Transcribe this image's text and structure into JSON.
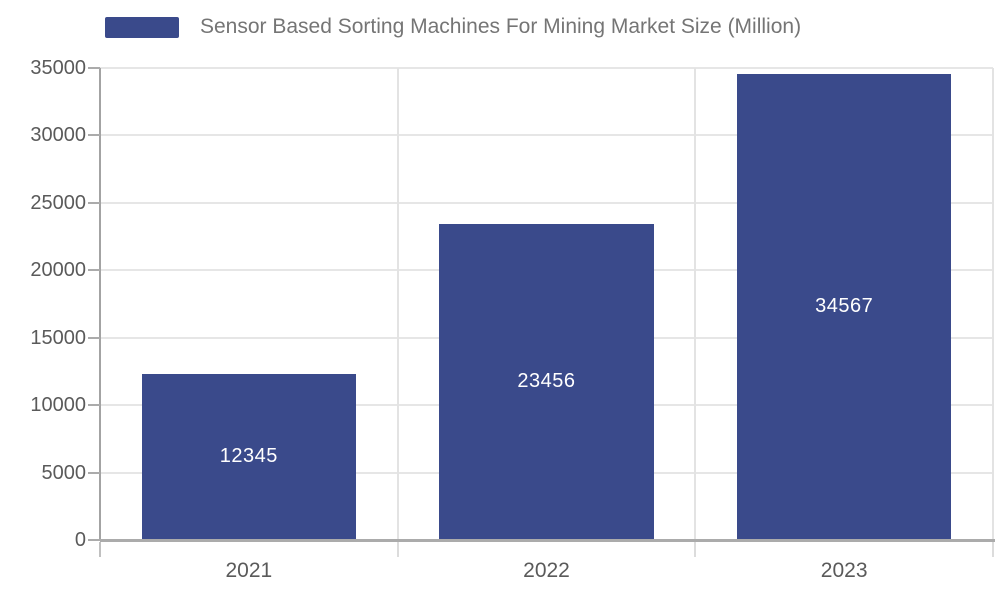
{
  "legend": {
    "label": "Sensor Based Sorting Machines For Mining Market Size (Million)",
    "swatch_color": "#3a4a8b"
  },
  "chart_data": {
    "type": "bar",
    "title": "Sensor Based Sorting Machines For Mining Market Size (Million)",
    "categories": [
      "2021",
      "2022",
      "2023"
    ],
    "values": [
      12345,
      23456,
      34567
    ],
    "series": [
      {
        "name": "Sensor Based Sorting Machines For Mining Market Size (Million)",
        "values": [
          12345,
          23456,
          34567
        ]
      }
    ],
    "value_labels": [
      "12345",
      "23456",
      "34567"
    ],
    "yticks": [
      0,
      5000,
      10000,
      15000,
      20000,
      25000,
      30000,
      35000
    ],
    "ytick_labels": [
      "0",
      "5000",
      "10000",
      "15000",
      "20000",
      "25000",
      "30000",
      "35000"
    ],
    "ylim": [
      0,
      35000
    ],
    "xlabel": "",
    "ylabel": "",
    "grid": true,
    "legend_position": "top-left",
    "bar_color": "#3a4a8b",
    "bar_label_color": "#ffffff"
  },
  "colors": {
    "background": "#ffffff",
    "bar": "#3a4a8b",
    "legend_text": "#757575",
    "tick_text": "#5a5a5a",
    "h_gridline": "#e6e6e6",
    "v_gridline": "#e3e3e3",
    "axis_line": "#ababab"
  }
}
